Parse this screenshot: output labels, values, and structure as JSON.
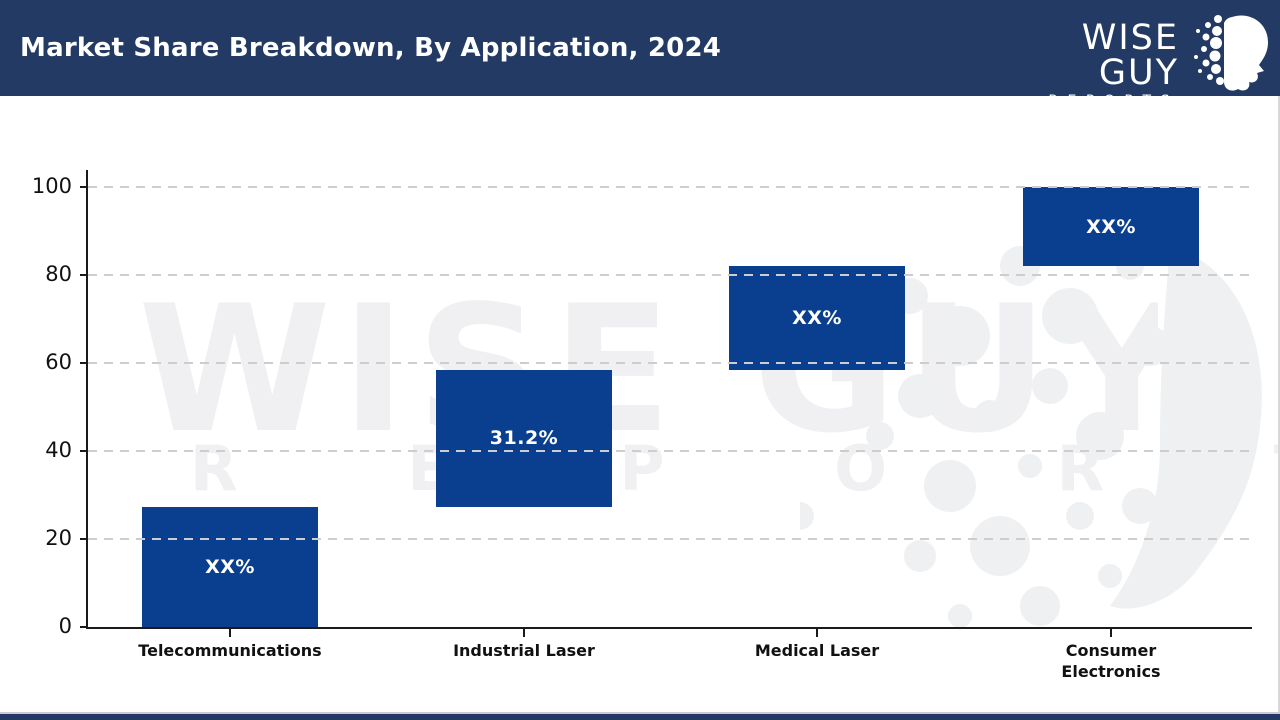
{
  "header": {
    "title": "Market Share Breakdown, By Application, 2024",
    "logo": {
      "line1": "WISE GUY",
      "line2": "REPORTS"
    }
  },
  "watermark": {
    "line1": "WISE GUY",
    "line2": "R E P O R T S"
  },
  "colors": {
    "navy": "#223a64",
    "bar_blue": "#0a3f8f",
    "grid_gray": "#cdcdcd",
    "axis_black": "#1a1a1a",
    "watermark_gray": "#f0f0f2"
  },
  "chart_data": {
    "type": "bar",
    "subtype": "waterfall",
    "title": "Market Share Breakdown, By Application, 2024",
    "categories": [
      "Telecommunications",
      "Industrial Laser",
      "Medical Laser",
      "Consumer\nElectronics"
    ],
    "segments": [
      {
        "category": "Telecommunications",
        "start": 0,
        "end": 27.3,
        "value": 27.3,
        "label": "XX%"
      },
      {
        "category": "Industrial Laser",
        "start": 27.3,
        "end": 58.5,
        "value": 31.2,
        "label": "31.2%"
      },
      {
        "category": "Medical Laser",
        "start": 58.5,
        "end": 82.0,
        "value": 23.5,
        "label": "XX%"
      },
      {
        "category": "Consumer Electronics",
        "start": 82.0,
        "end": 100,
        "value": 18.0,
        "label": "XX%"
      }
    ],
    "yticks": [
      0,
      20,
      40,
      60,
      80,
      100
    ],
    "ylim": [
      0,
      104
    ],
    "xlabel": "",
    "ylabel": "",
    "grid": "horizontal dashed, drawn over bars",
    "legend": "none"
  }
}
